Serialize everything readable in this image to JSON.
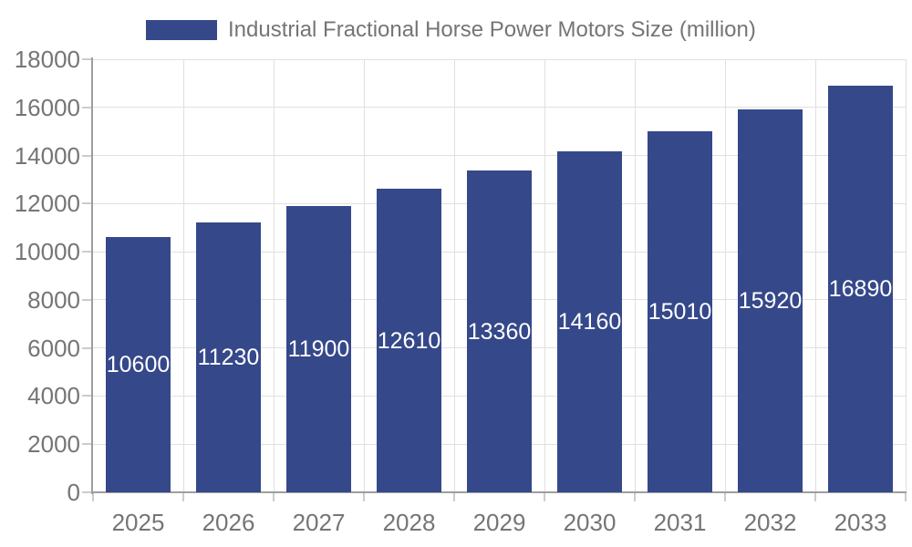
{
  "page": {
    "background": "#ffffff"
  },
  "legend": {
    "label": "Industrial Fractional Horse Power Motors Size (million)",
    "swatch_color": "#35488A",
    "text_color": "#757575"
  },
  "chart_data": {
    "type": "bar",
    "title": "Industrial Fractional Horse Power Motors Size (million)",
    "categories": [
      "2025",
      "2026",
      "2027",
      "2028",
      "2029",
      "2030",
      "2031",
      "2032",
      "2033"
    ],
    "values": [
      10600,
      11230,
      11900,
      12610,
      13360,
      14160,
      15010,
      15920,
      16890
    ],
    "xlabel": "",
    "ylabel": "",
    "ylim": [
      0,
      18000
    ],
    "yticks": [
      0,
      2000,
      4000,
      6000,
      8000,
      10000,
      12000,
      14000,
      16000,
      18000
    ],
    "grid": true,
    "legend_position": "top",
    "bar_color": "#35488A",
    "value_label_color": "#ffffff",
    "grid_color": "#e0e0e0",
    "axis_color": "#9e9e9e",
    "tick_color": "#cccccc",
    "tick_label_color": "#757575"
  }
}
